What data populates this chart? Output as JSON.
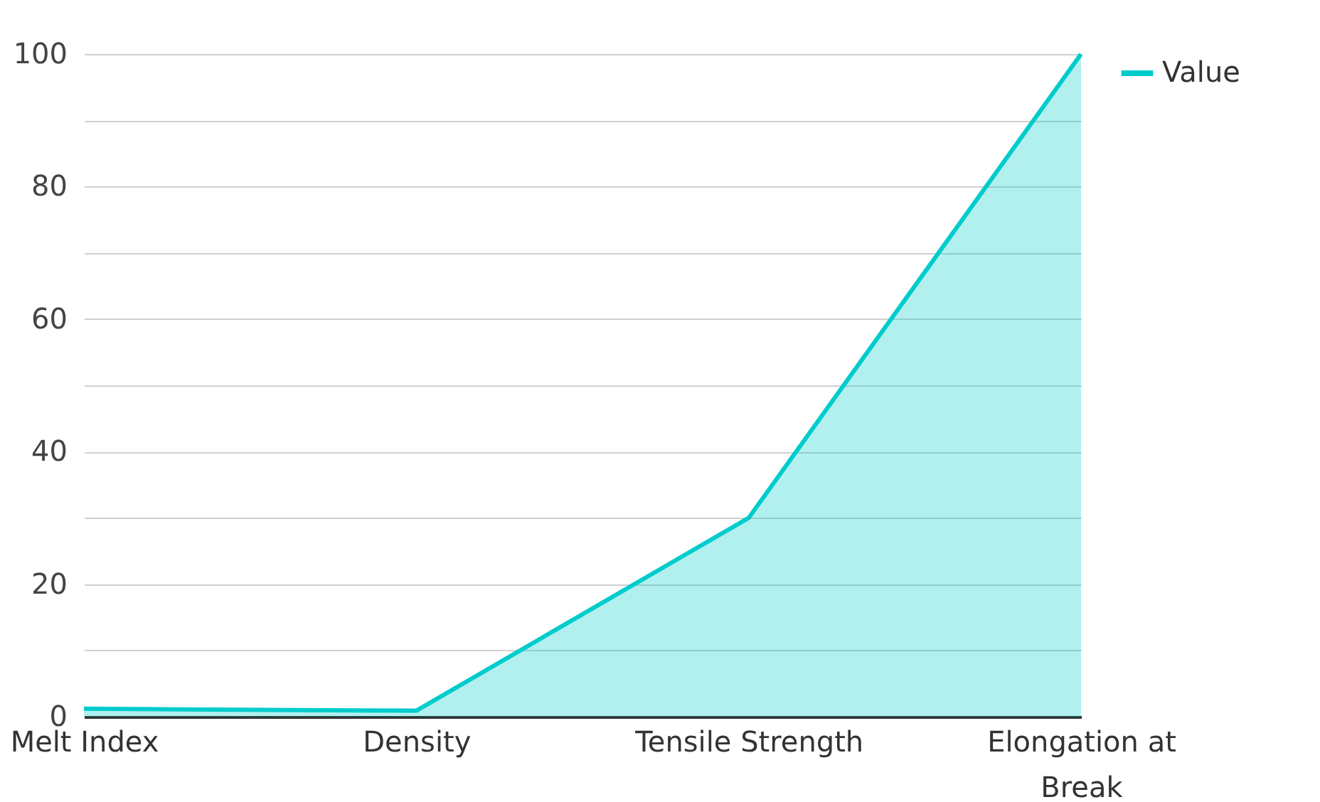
{
  "chart_data": {
    "type": "area",
    "categories": [
      "Melt Index",
      "Density",
      "Tensile Strength",
      "Elongation at Break"
    ],
    "series": [
      {
        "name": "Value",
        "color": "#00cccc",
        "values": [
          1.2,
          0.9,
          30,
          100
        ]
      }
    ],
    "ylim": [
      0,
      100
    ],
    "yticks": [
      0,
      {
        "value": 10,
        "label": null
      },
      20,
      {
        "value": 30,
        "label": null
      },
      40,
      {
        "value": 50,
        "label": null
      },
      60,
      {
        "value": 70,
        "label": null
      },
      80,
      {
        "value": 90,
        "label": null
      },
      100
    ],
    "grid": "y",
    "legend": "top right"
  }
}
